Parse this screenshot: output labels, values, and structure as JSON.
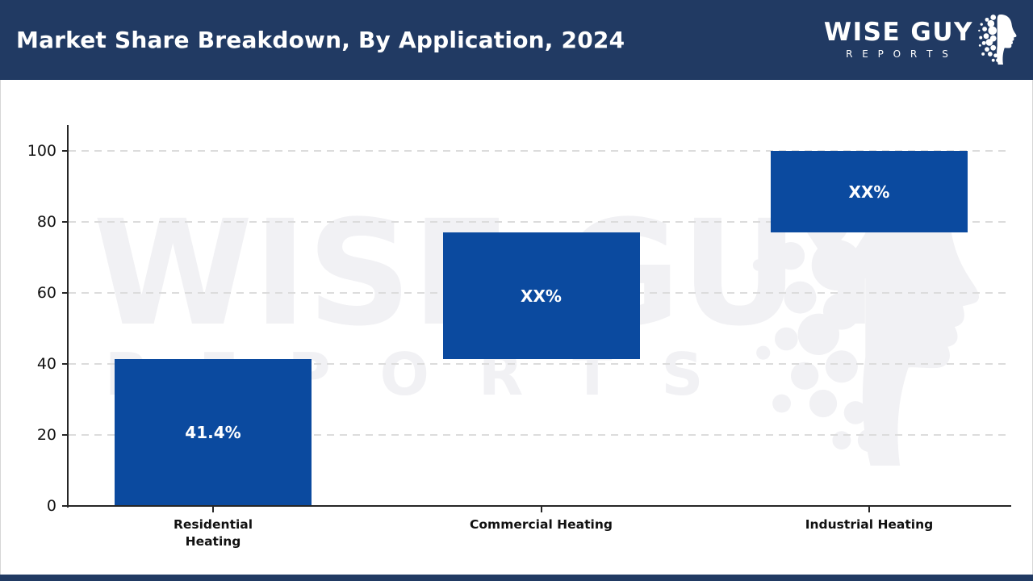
{
  "header": {
    "title": "Market Share Breakdown, By Application, 2024",
    "logo": {
      "wordmark": "WISE GUY",
      "subtext": "R E P O R T S"
    }
  },
  "watermark": {
    "wordmark": "WISE GUY",
    "subtext": "R E P O R T S"
  },
  "chart_data": {
    "type": "bar",
    "subtype": "floating-waterfall",
    "title": "Market Share Breakdown, By Application, 2024",
    "categories": [
      "Residential\nHeating",
      "Commercial Heating",
      "Industrial Heating"
    ],
    "segments": [
      {
        "category": "Residential\nHeating",
        "start": 0,
        "end": 41.4,
        "label": "41.4%"
      },
      {
        "category": "Commercial Heating",
        "start": 41.4,
        "end": 77,
        "label": "XX%"
      },
      {
        "category": "Industrial Heating",
        "start": 77,
        "end": 100,
        "label": "XX%"
      }
    ],
    "xlabel": "",
    "ylabel": "",
    "yticks": [
      0,
      20,
      40,
      60,
      80,
      100
    ],
    "ylim": [
      0,
      107
    ],
    "grid": "horizontal-dashed",
    "legend": "none",
    "bar_color": "#0b4a9f",
    "bar_label_color": "#ffffff"
  },
  "colors": {
    "band": "#213a63",
    "bar": "#0b4a9f",
    "grid": "#dcdcdc",
    "axis": "#262626",
    "text": "#121212",
    "watermark": "#f1f1f4"
  }
}
